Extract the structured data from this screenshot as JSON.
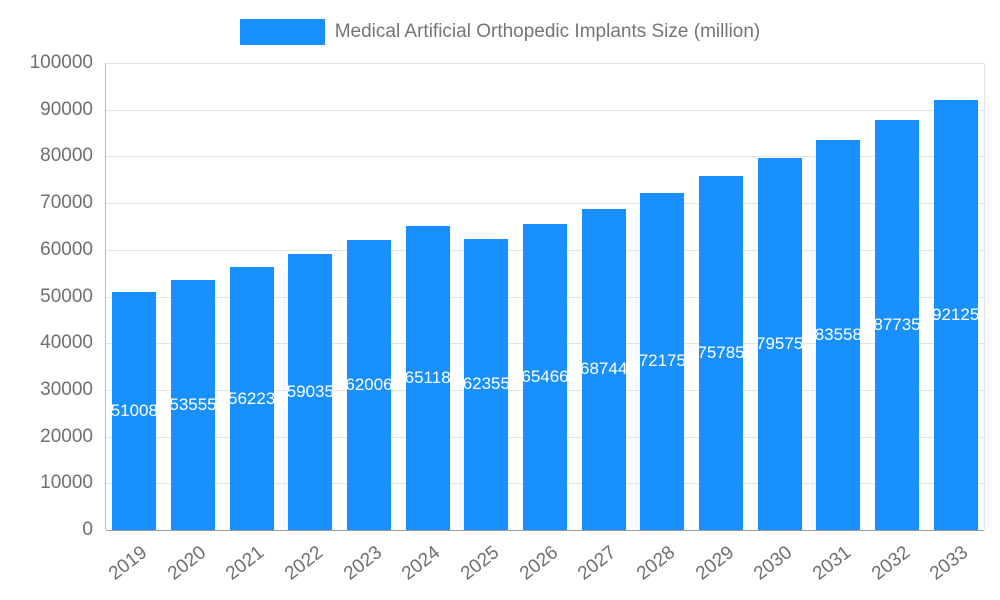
{
  "legend": {
    "label": "Medical Artificial Orthopedic Implants Size (million)"
  },
  "colors": {
    "bar": "#1890ff",
    "axis_text": "#6f6f6f",
    "legend_text": "#757575",
    "gridline": "#e3e3e3",
    "axis_line": "#9e9e9e",
    "value_label": "#ffffff",
    "background": "#ffffff"
  },
  "chart_data": {
    "type": "bar",
    "title": "Medical Artificial Orthopedic Implants Size (million)",
    "categories": [
      "2019",
      "2020",
      "2021",
      "2022",
      "2023",
      "2024",
      "2025",
      "2026",
      "2027",
      "2028",
      "2029",
      "2030",
      "2031",
      "2032",
      "2033"
    ],
    "values": [
      51008,
      53555,
      56223,
      59035,
      62006,
      65118,
      62355,
      65466,
      68744,
      72175,
      75785,
      79575,
      83558,
      87735,
      92125
    ],
    "value_labels_position": "inside-center",
    "xlabel": "",
    "ylabel": "",
    "ylim": [
      0,
      100000
    ],
    "ytick_interval": 10000,
    "ytick_labels": [
      "0",
      "10000",
      "20000",
      "30000",
      "40000",
      "50000",
      "60000",
      "70000",
      "80000",
      "90000",
      "100000"
    ],
    "grid": true,
    "legend_position": "top-center"
  }
}
